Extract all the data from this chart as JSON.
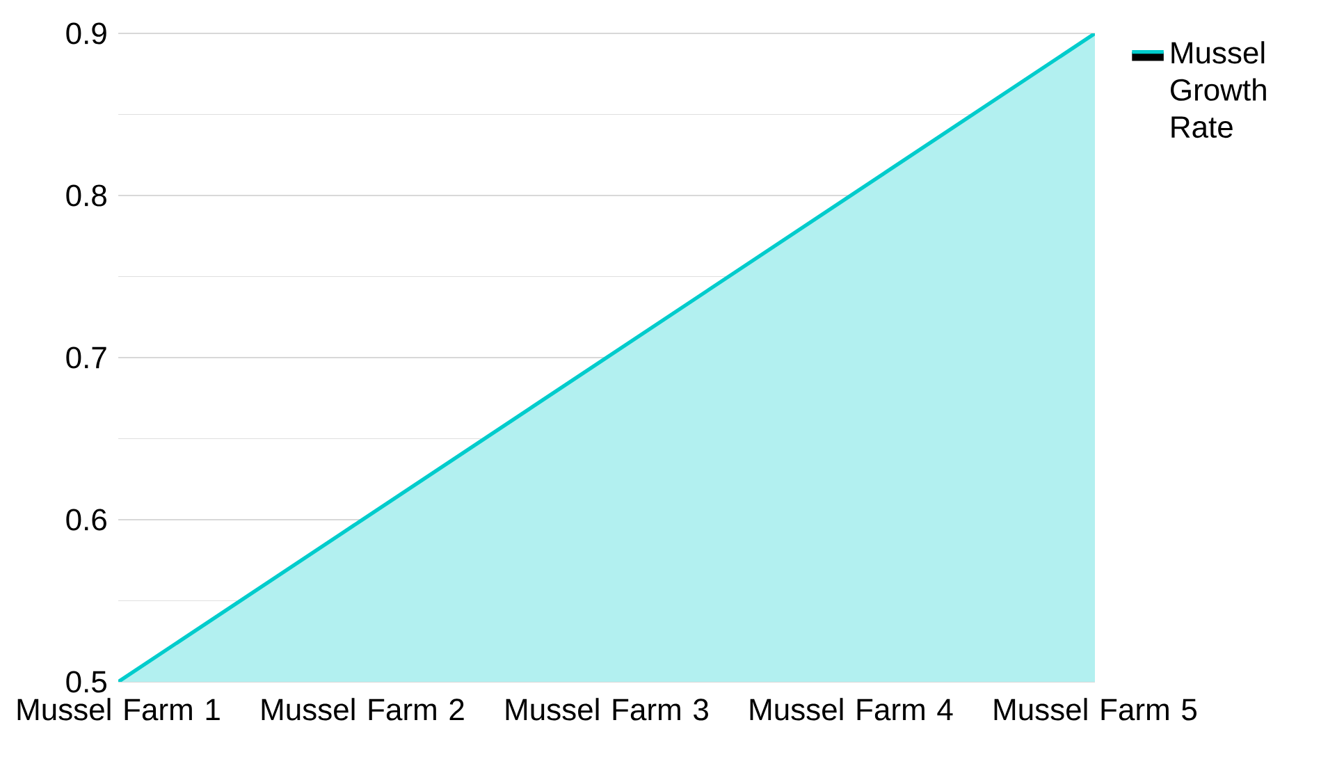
{
  "chart_data": {
    "type": "area",
    "categories": [
      "Mussel Farm 1",
      "Mussel Farm 2",
      "Mussel Farm 3",
      "Mussel Farm 4",
      "Mussel Farm 5"
    ],
    "series": [
      {
        "name": "Mussel Growth Rate",
        "color": "#00cccc",
        "values": [
          0.5,
          0.6,
          0.7,
          0.8,
          0.9
        ]
      }
    ],
    "ylim": [
      0.5,
      0.9
    ],
    "yticks": [
      0.5,
      0.6,
      0.7,
      0.8,
      0.9
    ],
    "grid": "y",
    "legend": "top right",
    "marker": "none"
  }
}
